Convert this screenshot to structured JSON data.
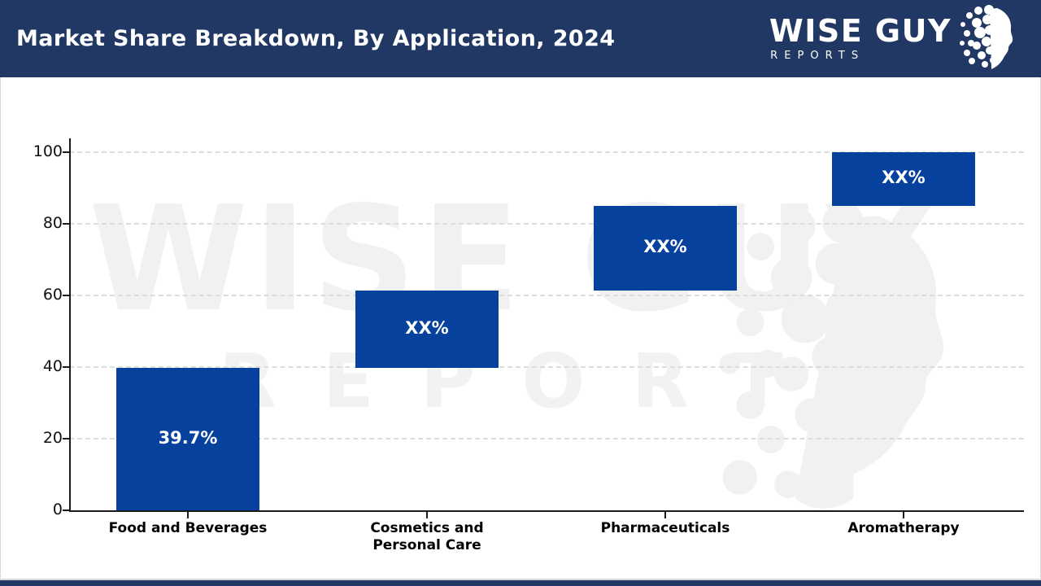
{
  "header": {
    "title": "Market Share Breakdown, By Application, 2024",
    "logo": {
      "name": "WISE GUY",
      "subtitle": "REPORTS"
    }
  },
  "watermark": {
    "line1": "WISE GUY",
    "line2": "REPORTS"
  },
  "colors": {
    "header_bg": "#223864",
    "bar": "#05419d",
    "grid": "#dcdcdc",
    "axis": "#1a1a1a",
    "bar_label": "#ffffff",
    "watermark": "#f1f1f1"
  },
  "chart_data": {
    "type": "bar",
    "subtype": "waterfall",
    "title": "Market Share Breakdown, By Application, 2024",
    "xlabel": "",
    "ylabel": "",
    "ylim": [
      0,
      105
    ],
    "y_ticks": [
      0,
      20,
      40,
      60,
      80,
      100
    ],
    "grid": "horizontal-dashed",
    "legend": "none",
    "categories": [
      "Food and Beverages",
      "Cosmetics and Personal Care",
      "Pharmaceuticals",
      "Aromatherapy"
    ],
    "category_display_lines": [
      [
        "Food and Beverages"
      ],
      [
        "Cosmetics and",
        "Personal Care"
      ],
      [
        "Pharmaceuticals"
      ],
      [
        "Aromatherapy"
      ]
    ],
    "segments": [
      {
        "category": "Food and Beverages",
        "start": 0,
        "end": 39.7,
        "label": "39.7%"
      },
      {
        "category": "Cosmetics and Personal Care",
        "start": 39.7,
        "end": 61.4,
        "label": "XX%"
      },
      {
        "category": "Pharmaceuticals",
        "start": 61.4,
        "end": 84.9,
        "label": "XX%"
      },
      {
        "category": "Aromatherapy",
        "start": 84.9,
        "end": 100,
        "label": "XX%"
      }
    ]
  }
}
